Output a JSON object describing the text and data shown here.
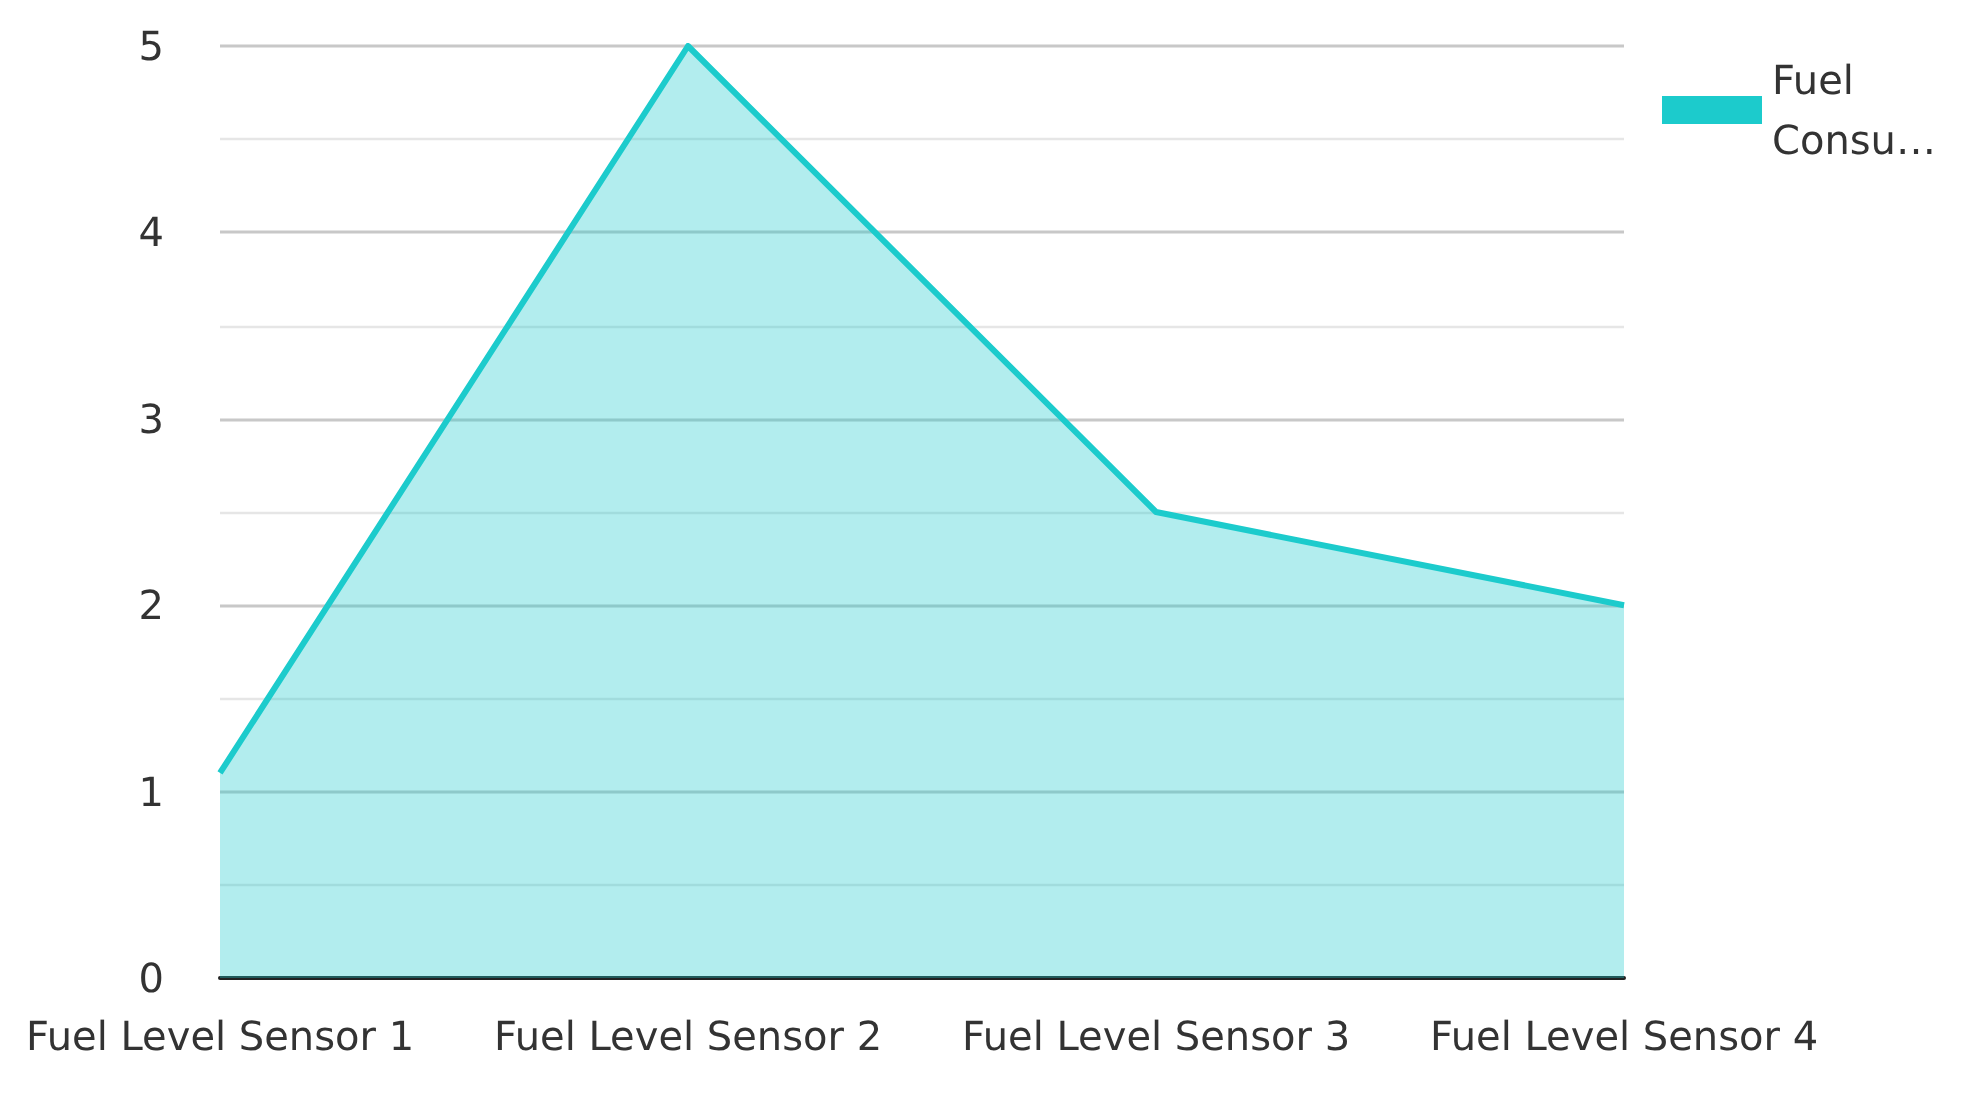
{
  "chart_data": {
    "type": "area",
    "categories": [
      "Fuel Level Sensor 1",
      "Fuel Level Sensor 2",
      "Fuel Level Sensor 3",
      "Fuel Level Sensor 4"
    ],
    "series": [
      {
        "name": "Fuel Consu…",
        "color": "#1ccbcc",
        "values": [
          1.1,
          5,
          2.5,
          2
        ]
      }
    ],
    "ylim": [
      0,
      5
    ],
    "yticks": [
      0,
      1,
      2,
      3,
      4,
      5
    ],
    "grid": "y",
    "legend": "top right",
    "marker": "none",
    "line_style": "solid"
  }
}
